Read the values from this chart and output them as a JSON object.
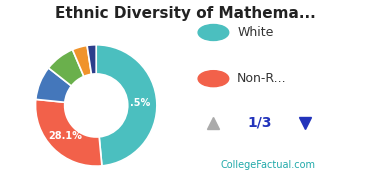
{
  "title": "Ethnic Diversity of Mathema...",
  "slices": [
    48.5,
    28.1,
    9.0,
    8.0,
    4.0,
    2.4
  ],
  "colors": [
    "#4bbfbf",
    "#f2614a",
    "#4477bb",
    "#6ab04c",
    "#f0932b",
    "#2c3e8c"
  ],
  "slice_labels": [
    ".5%",
    "28.1%",
    "",
    "",
    "",
    ""
  ],
  "label_positions": [
    true,
    true,
    false,
    false,
    false,
    false
  ],
  "startangle": 90,
  "legend_items": [
    "White",
    "Non-R..."
  ],
  "legend_colors": [
    "#4bbfbf",
    "#f2614a"
  ],
  "nav_text": "1/3",
  "nav_color": "#2233bb",
  "nav_triangle_left_color": "#aaaaaa",
  "nav_triangle_right_color": "#2233bb",
  "site_text": "CollegeFactual.com",
  "site_color": "#22aaaa",
  "title_fontsize": 11,
  "legend_fontsize": 9,
  "label_fontsize": 7,
  "bg_color": "#ffffff"
}
